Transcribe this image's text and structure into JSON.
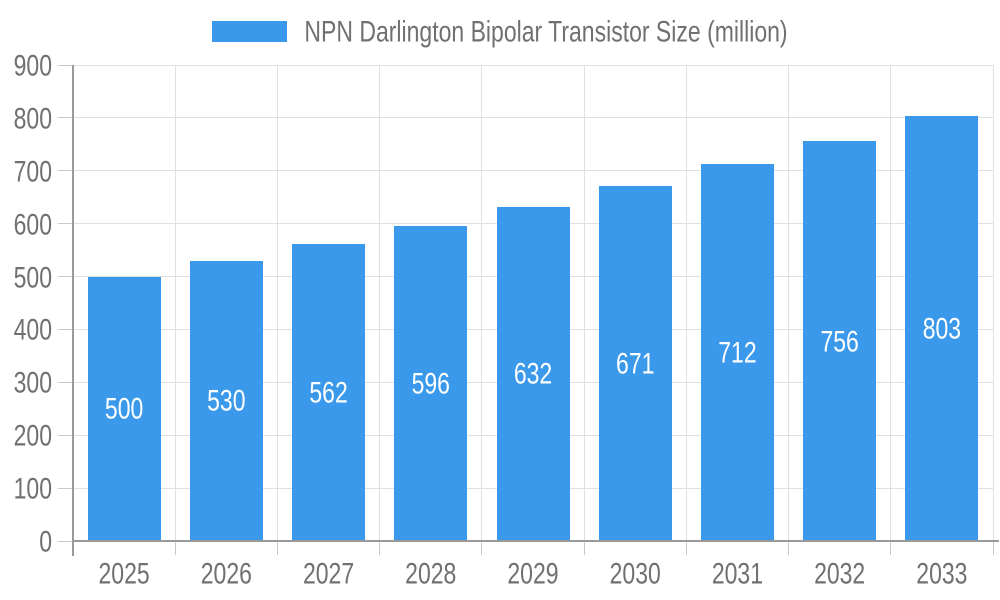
{
  "legend": {
    "title": "NPN Darlington Bipolar Transistor Size (million)"
  },
  "chart_data": {
    "type": "bar",
    "title": "NPN Darlington Bipolar Transistor Size (million)",
    "categories": [
      "2025",
      "2026",
      "2027",
      "2028",
      "2029",
      "2030",
      "2031",
      "2032",
      "2033"
    ],
    "values": [
      500,
      530,
      562,
      596,
      632,
      671,
      712,
      756,
      803
    ],
    "series": [
      {
        "name": "NPN Darlington Bipolar Transistor Size (million)",
        "values": [
          500,
          530,
          562,
          596,
          632,
          671,
          712,
          756,
          803
        ]
      }
    ],
    "xlabel": "",
    "ylabel": "",
    "ylim": [
      0,
      900
    ],
    "ytick_step": 100,
    "y_ticks": [
      0,
      100,
      200,
      300,
      400,
      500,
      600,
      700,
      800,
      900
    ],
    "grid": true,
    "legend_position": "top",
    "value_labels": "inside-center-white",
    "bar_color": "#3B99EC",
    "value_label_color": "#FFFFFF",
    "text_color": "#707070",
    "axis_color": "#9A9A9A",
    "grid_color": "#E0E0E0",
    "tick_color": "#C9C9C9"
  }
}
